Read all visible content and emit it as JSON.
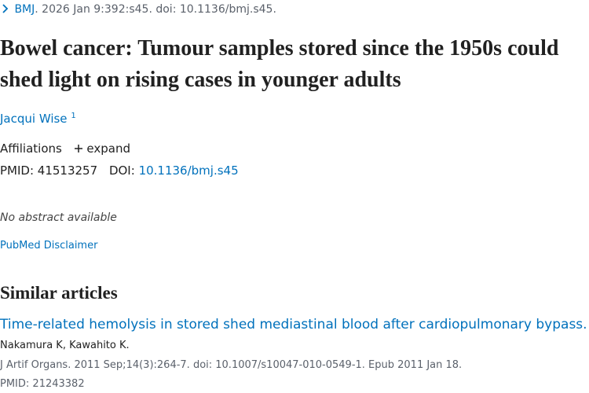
{
  "citation": {
    "journal": "BMJ",
    "details": ". 2026 Jan 9:392:s45. doi: 10.1136/bmj.s45."
  },
  "title": "Bowel cancer: Tumour samples stored since the 1950s could shed light on rising cases in younger adults",
  "author": {
    "name": "Jacqui Wise",
    "affiliation_number": "1"
  },
  "affiliations": {
    "label": "Affiliations",
    "toggle": "expand"
  },
  "identifiers": {
    "pmid_label": "PMID:",
    "pmid": "41513257",
    "doi_label": "DOI:",
    "doi": "10.1136/bmj.s45"
  },
  "abstract": "No abstract available",
  "disclaimer": "PubMed Disclaimer",
  "similar_articles": {
    "heading": "Similar articles",
    "items": [
      {
        "title": "Time-related hemolysis in stored shed mediastinal blood after cardiopulmonary bypass.",
        "authors": "Nakamura K, Kawahito K.",
        "citation": "J Artif Organs. 2011 Sep;14(3):264-7. doi: 10.1007/s10047-010-0549-1. Epub 2011 Jan 18.",
        "pmid_label": "PMID:",
        "pmid": "21243382"
      }
    ]
  }
}
